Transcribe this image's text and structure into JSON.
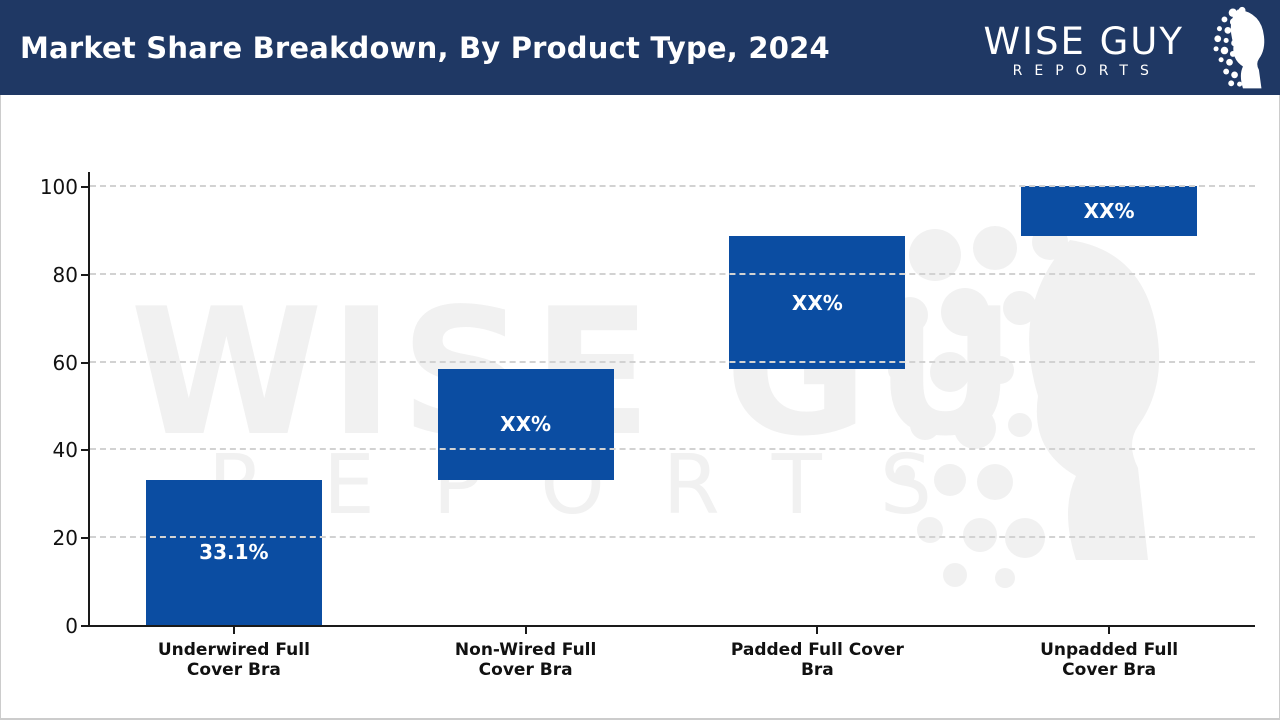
{
  "header": {
    "title": "Market Share Breakdown, By Product Type, 2024",
    "brand": {
      "line1": "WISE GUY",
      "line2": "REPORTS"
    }
  },
  "watermark": {
    "line1": "WISE GUY",
    "line2": "REPORTS"
  },
  "colors": {
    "header_bg": "#1f3864",
    "bar": "#0b4da2",
    "bar_label": "#ffffff",
    "gridline": "#d2d2d2",
    "axis": "#1a1a1a",
    "watermark": "#f1f1f1"
  },
  "chart_data": {
    "type": "bar",
    "subtype": "waterfall",
    "title": "Market Share Breakdown, By Product Type, 2024",
    "xlabel": "",
    "ylabel": "",
    "categories": [
      [
        "Underwired Full",
        "Cover Bra"
      ],
      [
        "Non-Wired Full",
        "Cover Bra"
      ],
      [
        "Padded Full Cover",
        "Bra"
      ],
      [
        "Unpadded Full",
        "Cover Bra"
      ]
    ],
    "segments": [
      {
        "bottom": 0,
        "top": 33.1,
        "label": "33.1%"
      },
      {
        "bottom": 33.1,
        "top": 58.3,
        "label": "XX%"
      },
      {
        "bottom": 58.3,
        "top": 88.6,
        "label": "XX%"
      },
      {
        "bottom": 88.6,
        "top": 100,
        "label": "XX%"
      }
    ],
    "yticks": [
      0,
      20,
      40,
      60,
      80,
      100
    ],
    "ylim": [
      0,
      103
    ],
    "grid": "dashed-horizontal",
    "legend": "none"
  }
}
